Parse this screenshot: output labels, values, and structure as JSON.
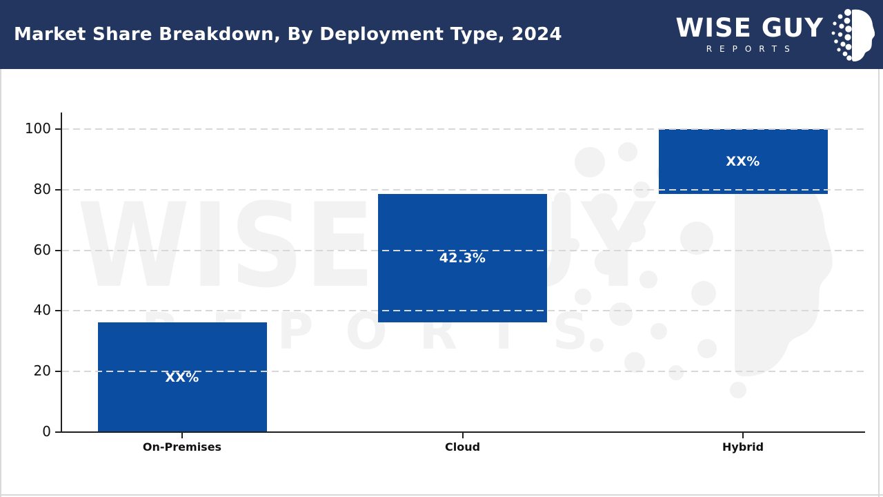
{
  "header": {
    "title": "Market Share Breakdown, By Deployment Type, 2024",
    "logo": {
      "line1": "WISE GUY",
      "line2": "REPORTS",
      "face_icon": "dotted-head-profile"
    }
  },
  "watermark": {
    "line1": "WISE GUY",
    "line2": "REPORTS"
  },
  "colors": {
    "header_bg": "#22365F",
    "bar": "#0B4DA1",
    "grid": "#D8D8D8",
    "axis": "#1F1F1F",
    "bar_label": "#FFFFFF",
    "watermark": "#F2F2F2"
  },
  "chart_data": {
    "type": "bar",
    "subtype": "waterfall",
    "title": "Market Share Breakdown, By Deployment Type, 2024",
    "categories": [
      "On-Premises",
      "Cloud",
      "Hybrid"
    ],
    "segments": [
      {
        "category": "On-Premises",
        "start": 0,
        "end": 36.2,
        "label": "XX%"
      },
      {
        "category": "Cloud",
        "start": 36.2,
        "end": 78.5,
        "label": "42.3%"
      },
      {
        "category": "Hybrid",
        "start": 78.5,
        "end": 100,
        "label": "XX%"
      }
    ],
    "yticks": [
      0,
      20,
      40,
      60,
      80,
      100
    ],
    "ylim": [
      0,
      105
    ],
    "xlabel": "",
    "ylabel": "",
    "grid": "dashed-horizontal-over-bars",
    "legend": "none"
  }
}
